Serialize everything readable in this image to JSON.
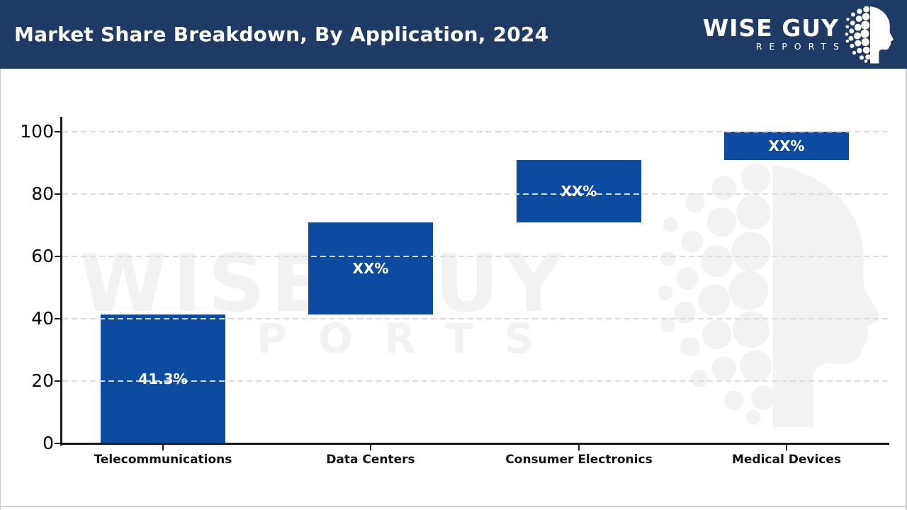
{
  "header": {
    "title": "Market Share Breakdown, By Application, 2024",
    "logo": {
      "line1": "WISE GUY",
      "line2": "REPORTS"
    }
  },
  "watermark": {
    "line1": "WISE GUY",
    "line2": "REPORTS"
  },
  "chart_data": {
    "type": "bar",
    "subtype": "waterfall",
    "title": "Market Share Breakdown, By Application, 2024",
    "categories": [
      "Telecommunications",
      "Data Centers",
      "Consumer Electronics",
      "Medical Devices"
    ],
    "segments": [
      {
        "category": "Telecommunications",
        "start": 0,
        "end": 41.3,
        "value": 41.3,
        "label": "41.3%"
      },
      {
        "category": "Data Centers",
        "start": 41.3,
        "end": 71,
        "value": 29.7,
        "label": "XX%"
      },
      {
        "category": "Consumer Electronics",
        "start": 71,
        "end": 91,
        "value": 20,
        "label": "XX%"
      },
      {
        "category": "Medical Devices",
        "start": 91,
        "end": 100,
        "value": 9,
        "label": "XX%"
      }
    ],
    "xlabel": "",
    "ylabel": "",
    "ylim": [
      0,
      100
    ],
    "yticks": [
      0,
      20,
      40,
      60,
      80,
      100
    ],
    "grid": "horizontal-dashed",
    "legend": "none",
    "bar_color": "#0C4B9F",
    "bar_label_color": "#FFFFFF"
  },
  "colors": {
    "header_bg": "#203A66",
    "bar": "#0C4B9F",
    "grid": "#DCDCDC",
    "axis": "#1A1A1A",
    "watermark": "#F2F2F2"
  }
}
